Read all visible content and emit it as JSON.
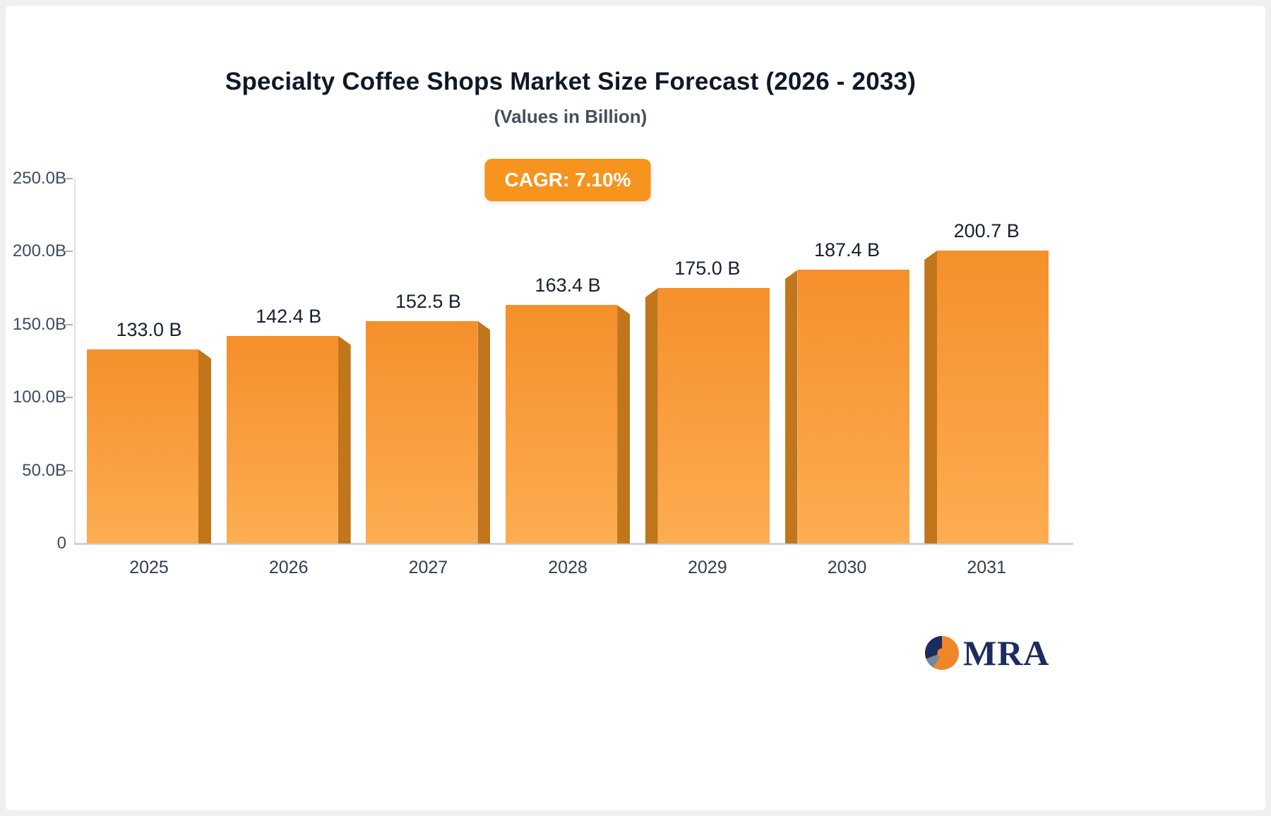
{
  "chart_data": {
    "type": "bar",
    "title": "Specialty Coffee Shops Market Size Forecast (2026 - 2033)",
    "subtitle": "(Values in Billion)",
    "cagr_label": "CAGR: 7.10%",
    "categories": [
      "2025",
      "2026",
      "2027",
      "2028",
      "2029",
      "2030",
      "2031"
    ],
    "values": [
      133.0,
      142.4,
      152.5,
      163.4,
      175.0,
      187.4,
      200.7
    ],
    "value_labels": [
      "133.0 B",
      "142.4 B",
      "152.5 B",
      "163.4 B",
      "175.0 B",
      "187.4 B",
      "200.7 B"
    ],
    "xlabel": "",
    "ylabel": "",
    "ylim": [
      0,
      250
    ],
    "yticks": [
      0,
      50,
      100,
      150,
      200,
      250
    ],
    "ytick_labels": [
      "0",
      "50.0B",
      "100.0B",
      "150.0B",
      "200.0B",
      "250.0B"
    ],
    "grid": false,
    "legend": false,
    "colors": {
      "bar_top": "#f5902b",
      "bar_bottom": "#fcad52",
      "bar_side": "#c2761b",
      "badge_bg": "#f7941e",
      "value_text": "#17202e",
      "axis_text": "#3c4c61",
      "logo_navy": "#1b2c5e",
      "logo_orange": "#f0862a",
      "logo_gray": "#7a8699"
    }
  },
  "brand": {
    "name": "MRA"
  }
}
